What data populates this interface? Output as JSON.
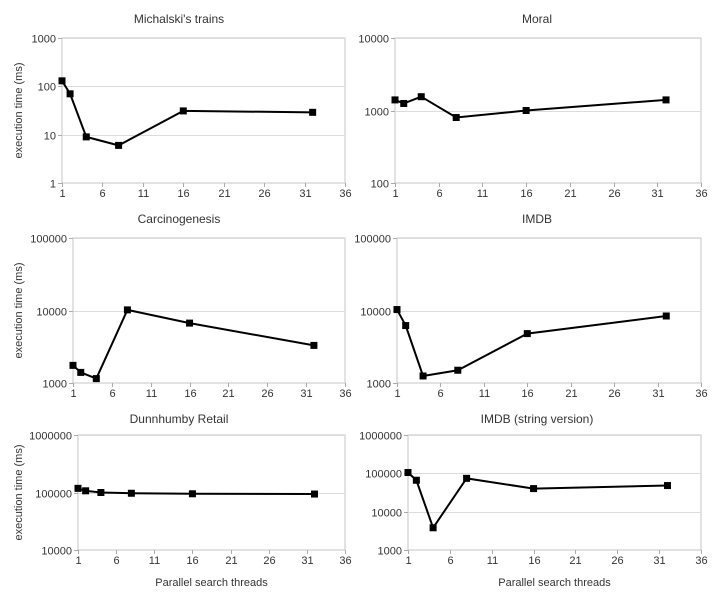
{
  "figure": {
    "shared_ylabel": "execution time (ms)",
    "shared_xlabel": "Parallel search threads"
  },
  "colors": {
    "line": "#000000",
    "marker": "#000000",
    "grid": "#dcdcdc",
    "axis": "#c4c4c4",
    "tick": "#aaaaaa",
    "text": "#333333"
  },
  "chart_data": [
    {
      "type": "line",
      "title": "Michalski's trains",
      "ylabel": "execution time (ms)",
      "xlabel": "",
      "x": [
        1,
        2,
        4,
        8,
        16,
        32
      ],
      "values": [
        130,
        70,
        9,
        6,
        31,
        29
      ],
      "yscale": "log",
      "ylim": [
        1,
        1000
      ],
      "yticks": [
        1,
        10,
        100,
        1000
      ],
      "xlim": [
        1,
        36
      ],
      "xticks": [
        1,
        6,
        11,
        16,
        21,
        26,
        31,
        36
      ],
      "grid": true,
      "legend": "none",
      "marker": "square"
    },
    {
      "type": "line",
      "title": "Moral",
      "ylabel": "",
      "xlabel": "",
      "x": [
        1,
        2,
        4,
        8,
        16,
        32
      ],
      "values": [
        1400,
        1250,
        1550,
        800,
        1000,
        1400
      ],
      "yscale": "log",
      "ylim": [
        100,
        10000
      ],
      "yticks": [
        100,
        1000,
        10000
      ],
      "xlim": [
        1,
        36
      ],
      "xticks": [
        1,
        6,
        11,
        16,
        21,
        26,
        31,
        36
      ],
      "grid": true,
      "legend": "none",
      "marker": "square"
    },
    {
      "type": "line",
      "title": "Carcinogenesis",
      "ylabel": "execution time (ms)",
      "xlabel": "",
      "x": [
        1,
        2,
        4,
        8,
        16,
        32
      ],
      "values": [
        1750,
        1400,
        1150,
        10200,
        6700,
        3300
      ],
      "yscale": "log",
      "ylim": [
        1000,
        100000
      ],
      "yticks": [
        1000,
        10000,
        100000
      ],
      "xlim": [
        1,
        36
      ],
      "xticks": [
        1,
        6,
        11,
        16,
        21,
        26,
        31,
        36
      ],
      "grid": true,
      "legend": "none",
      "marker": "square"
    },
    {
      "type": "line",
      "title": "IMDB",
      "ylabel": "",
      "xlabel": "",
      "x": [
        1,
        2,
        4,
        8,
        16,
        32
      ],
      "values": [
        10300,
        6200,
        1250,
        1500,
        4800,
        8400
      ],
      "yscale": "log",
      "ylim": [
        1000,
        100000
      ],
      "yticks": [
        1000,
        10000,
        100000
      ],
      "xlim": [
        1,
        36
      ],
      "xticks": [
        1,
        6,
        11,
        16,
        21,
        26,
        31,
        36
      ],
      "grid": true,
      "legend": "none",
      "marker": "square"
    },
    {
      "type": "line",
      "title": "Dunnhumby Retail",
      "ylabel": "execution time (ms)",
      "xlabel": "Parallel search threads",
      "x": [
        1,
        2,
        4,
        8,
        16,
        32
      ],
      "values": [
        118000,
        107000,
        100000,
        97000,
        95000,
        94000
      ],
      "yscale": "log",
      "ylim": [
        10000,
        1000000
      ],
      "yticks": [
        10000,
        100000,
        1000000
      ],
      "xlim": [
        1,
        36
      ],
      "xticks": [
        1,
        6,
        11,
        16,
        21,
        26,
        31,
        36
      ],
      "grid": true,
      "legend": "none",
      "marker": "square"
    },
    {
      "type": "line",
      "title": "IMDB (string version)",
      "ylabel": "",
      "xlabel": "Parallel search threads",
      "x": [
        1,
        2,
        4,
        8,
        16,
        32
      ],
      "values": [
        105000,
        66000,
        3800,
        74000,
        40000,
        48000
      ],
      "yscale": "log",
      "ylim": [
        1000,
        1000000
      ],
      "yticks": [
        1000,
        10000,
        100000,
        1000000
      ],
      "xlim": [
        1,
        36
      ],
      "xticks": [
        1,
        6,
        11,
        16,
        21,
        26,
        31,
        36
      ],
      "grid": true,
      "legend": "none",
      "marker": "square"
    }
  ]
}
